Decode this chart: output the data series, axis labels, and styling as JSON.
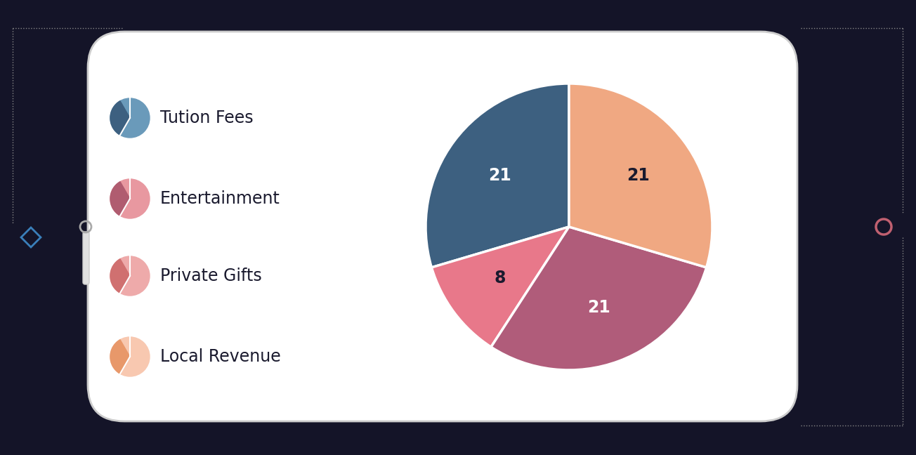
{
  "labels": [
    "Tution Fees",
    "Entertainment",
    "Private Gifts",
    "Local Revenue"
  ],
  "values": [
    21,
    8,
    21,
    21
  ],
  "pie_colors": [
    "#3d6080",
    "#e8788a",
    "#b05c7a",
    "#f0a882"
  ],
  "icon_dark": [
    "#3d6080",
    "#b05c70",
    "#d07070",
    "#e8986a"
  ],
  "icon_light": [
    "#6a9aba",
    "#e898a0",
    "#eeaaaa",
    "#f8c8b0"
  ],
  "outer_bg": "#141428",
  "phone_bg": "#ffffff",
  "phone_border": "#cccccc",
  "text_color": "#1a1a2e",
  "startangle": 90,
  "label_fontsize": 17,
  "value_fontsize": 17,
  "deco_dot_color": "#888888",
  "deco_diamond_color": "#3a7fba",
  "deco_circle_right_color": "#c06070",
  "deco_circle_left_color": "#aaaaaa"
}
